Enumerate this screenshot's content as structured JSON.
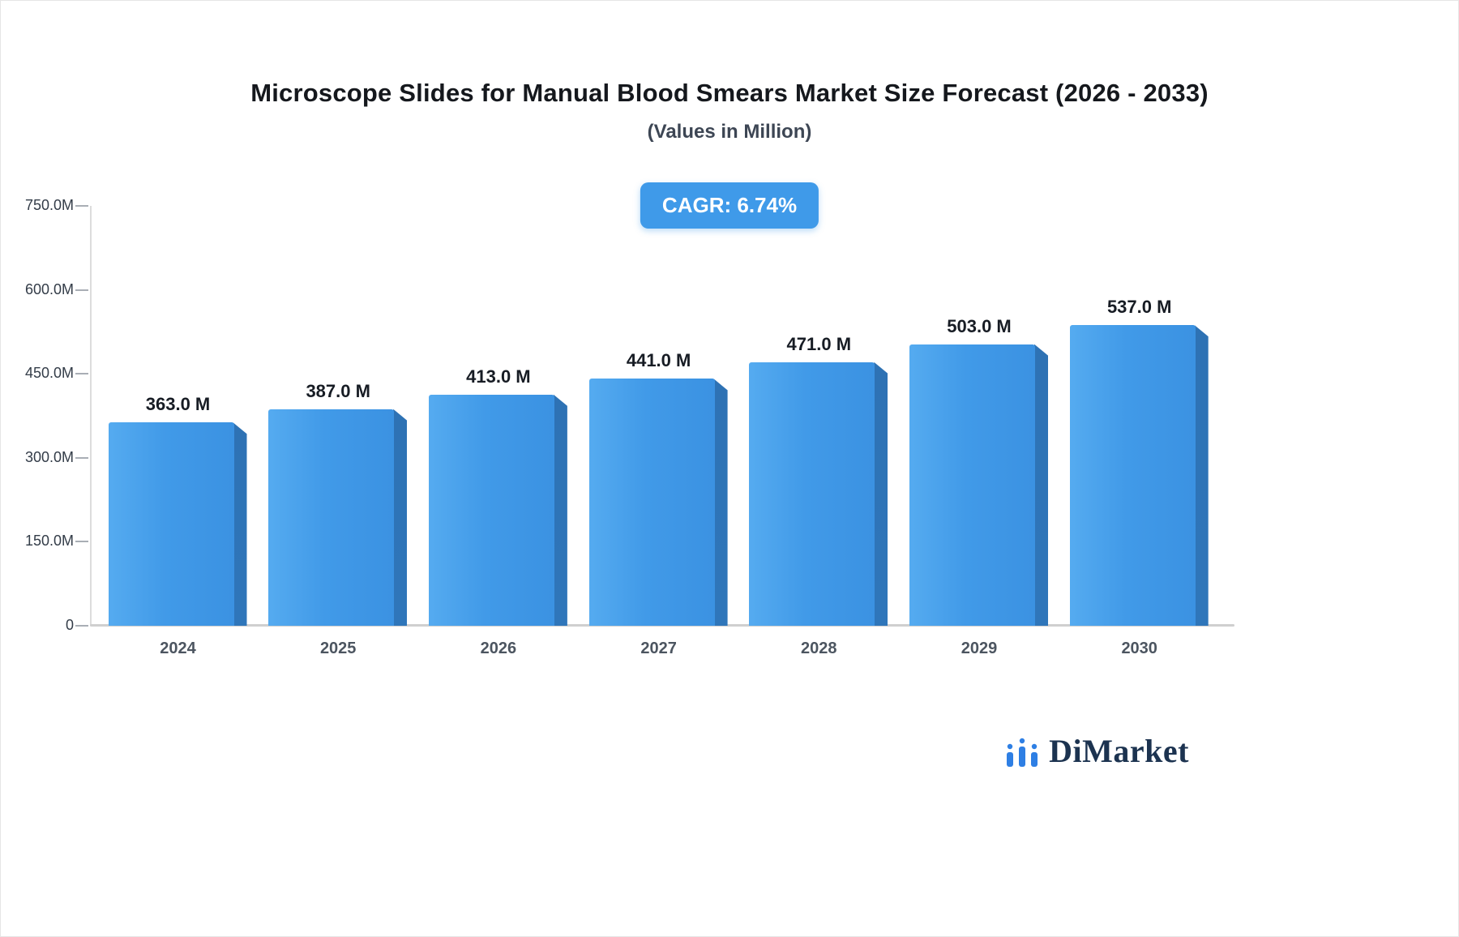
{
  "header": {
    "title": "Microscope Slides for Manual Blood Smears Market Size Forecast (2026 - 2033)",
    "subtitle": "(Values in Million)",
    "cagr_badge": "CAGR: 6.74%"
  },
  "logo": {
    "text": "DiMarket",
    "icon": "bar-chart-icon",
    "icon_color": "#2e7fe4",
    "text_color": "#1c3350"
  },
  "colors": {
    "bar_main": "#3f97e6",
    "bar_main_light": "#51a9ef",
    "bar_side": "#2e72b4",
    "badge": "#3f9ae9",
    "axis": "#cfcfcf"
  },
  "chart_data": {
    "type": "bar",
    "title": "Microscope Slides for Manual Blood Smears Market Size Forecast (2026 - 2033)",
    "subtitle": "(Values in Million)",
    "categories": [
      "2024",
      "2025",
      "2026",
      "2027",
      "2028",
      "2029",
      "2030"
    ],
    "values": [
      363,
      387,
      413,
      441,
      471,
      503,
      537
    ],
    "value_labels": [
      "363.0 M",
      "387.0 M",
      "413.0 M",
      "441.0 M",
      "471.0 M",
      "503.0 M",
      "537.0 M"
    ],
    "unit": "Million",
    "xlabel": "",
    "ylabel": "",
    "ylim": [
      0,
      750
    ],
    "ytick_labels": [
      "750.0M",
      "600.0M",
      "450.0M",
      "300.0M",
      "150.0M",
      "0"
    ],
    "ytick_values": [
      750,
      600,
      450,
      300,
      150,
      0
    ],
    "grid": false,
    "legend": "none"
  }
}
